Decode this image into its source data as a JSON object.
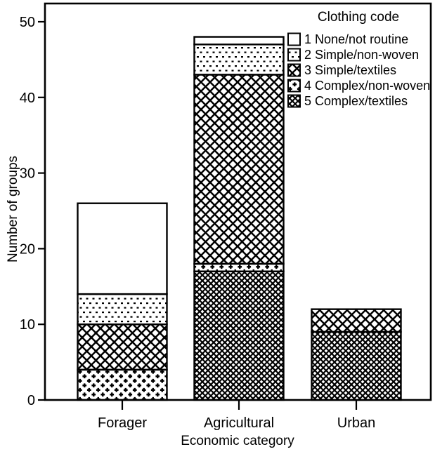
{
  "figure": {
    "background": "#ffffff",
    "ink_color": "#000000"
  },
  "legend": {
    "title": "Clothing code",
    "entries": [
      {
        "code": 1,
        "label": "1 None/not routine",
        "pattern": "plain-white"
      },
      {
        "code": 2,
        "label": "2 Simple/non-woven",
        "pattern": "dots"
      },
      {
        "code": 3,
        "label": "3 Simple/textiles",
        "pattern": "crosshatch"
      },
      {
        "code": 4,
        "label": "4 Complex/non-woven",
        "pattern": "plus"
      },
      {
        "code": 5,
        "label": "5 Complex/textiles",
        "pattern": "dense-crosshatch"
      }
    ]
  },
  "chart_data": {
    "type": "bar",
    "stacked": true,
    "title": "",
    "xlabel": "Economic category",
    "ylabel": "Number of groups",
    "categories": [
      "Forager",
      "Agricultural",
      "Urban"
    ],
    "series": [
      {
        "name": "1 None/not routine",
        "pattern": "plain-white",
        "values": [
          12,
          1,
          0
        ]
      },
      {
        "name": "2 Simple/non-woven",
        "pattern": "dots",
        "values": [
          4,
          4,
          0
        ]
      },
      {
        "name": "3 Simple/textiles",
        "pattern": "crosshatch",
        "values": [
          6,
          25,
          3
        ]
      },
      {
        "name": "4 Complex/non-woven",
        "pattern": "plus",
        "values": [
          4,
          1,
          0
        ]
      },
      {
        "name": "5 Complex/textiles",
        "pattern": "dense-crosshatch",
        "values": [
          0,
          17,
          9
        ]
      }
    ],
    "stack_order_bottom_to_top": [
      "5 Complex/textiles",
      "4 Complex/non-woven",
      "3 Simple/textiles",
      "2 Simple/non-woven",
      "1 None/not routine"
    ],
    "totals": [
      26,
      48,
      12
    ],
    "yticks": [
      0,
      10,
      20,
      30,
      40,
      50
    ],
    "ylim": [
      0,
      52.3
    ],
    "grid": false,
    "legend_title": "Clothing code",
    "legend_position": "upper right",
    "colors": {
      "ink": "#000000",
      "background": "#ffffff"
    }
  }
}
